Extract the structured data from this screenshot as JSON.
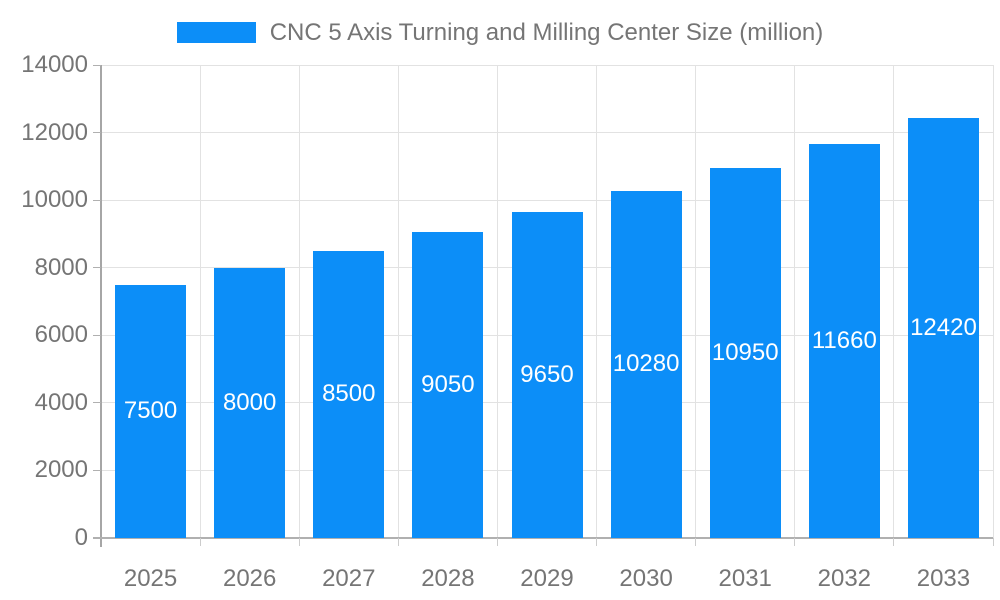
{
  "chart_data": {
    "type": "bar",
    "legend": "CNC 5 Axis Turning and Milling Center Size (million)",
    "legend_position": "top",
    "categories": [
      "2025",
      "2026",
      "2027",
      "2028",
      "2029",
      "2030",
      "2031",
      "2032",
      "2033"
    ],
    "values": [
      7500,
      8000,
      8500,
      9050,
      9650,
      10280,
      10950,
      11660,
      12420
    ],
    "value_labels": [
      "7500",
      "8000",
      "8500",
      "9050",
      "9650",
      "10280",
      "10950",
      "11660",
      "12420"
    ],
    "xlabel": "",
    "ylabel": "",
    "ylim": [
      0,
      14000
    ],
    "yticks": [
      0,
      2000,
      4000,
      6000,
      8000,
      10000,
      12000,
      14000
    ],
    "grid": true,
    "colors": {
      "bar": "#0c8ef8",
      "value_label": "#ffffff",
      "axis_text": "#757575",
      "gridline": "#e2e2e2",
      "y_axis_line": "#a6a6a6",
      "x_axis_line": "#b0b0b0",
      "y_tick": "#b0b0b0",
      "category_tick": "#cccccc"
    }
  }
}
